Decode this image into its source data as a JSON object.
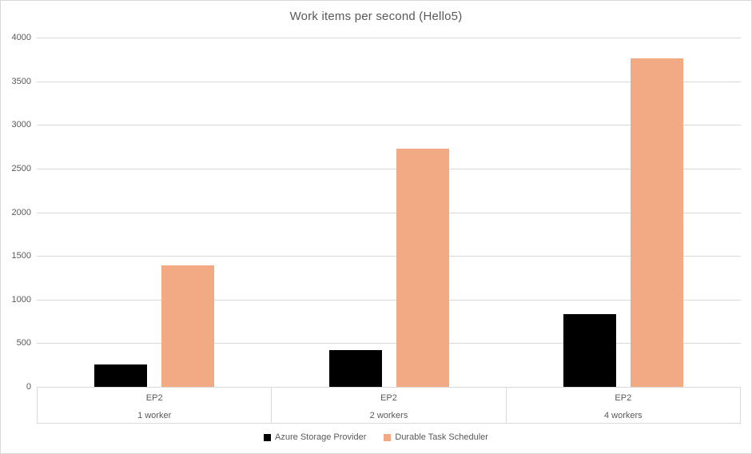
{
  "chart_data": {
    "type": "bar",
    "title": "Work items per second (Hello5)",
    "categories": [
      {
        "environment": "EP2",
        "workers": "1 worker"
      },
      {
        "environment": "EP2",
        "workers": "2 workers"
      },
      {
        "environment": "EP2",
        "workers": "4 workers"
      }
    ],
    "series": [
      {
        "name": "Azure Storage Provider",
        "color": "#000000",
        "values": [
          260,
          420,
          830
        ]
      },
      {
        "name": "Durable Task Scheduler",
        "color": "#F2AA84",
        "values": [
          1390,
          2730,
          3760
        ]
      }
    ],
    "xlabel": "",
    "ylabel": "",
    "ylim": [
      0,
      4000
    ],
    "ytick_step": 500,
    "ytick_labels": [
      "0",
      "500",
      "1000",
      "1500",
      "2000",
      "2500",
      "3000",
      "3500",
      "4000"
    ],
    "grid": "horizontal",
    "legend_position": "bottom"
  },
  "colors": {
    "bar_azure_storage_provider": "#000000",
    "bar_durable_task_scheduler": "#F2AA84",
    "gridline": "#D9D9D9",
    "axis_text": "#595959",
    "title_text": "#595959",
    "frame_border": "#D8D8D8",
    "background": "#FFFFFF"
  }
}
